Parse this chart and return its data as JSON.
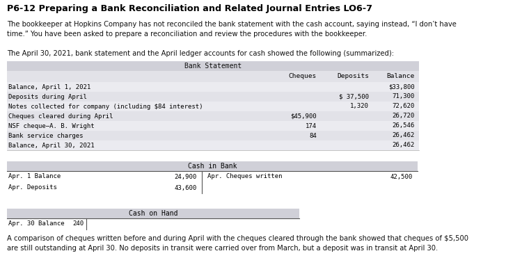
{
  "title": "P6-12 Preparing a Bank Reconciliation and Related Journal Entries LO6-7",
  "para1": "The bookkeeper at Hopkins Company has not reconciled the bank statement with the cash account, saying instead, “I don’t have\ntime.” You have been asked to prepare a reconciliation and review the procedures with the bookkeeper.",
  "para2": "The April 30, 2021, bank statement and the April ledger accounts for cash showed the following (summarized):",
  "bank_statement_header": "Bank Statement",
  "bank_col_headers": [
    "Cheques",
    "Deposits",
    "Balance"
  ],
  "bank_rows": [
    {
      "label": "Balance, April 1, 2021",
      "cheques": "",
      "deposits": "",
      "balance": "$33,800"
    },
    {
      "label": "Deposits during April",
      "cheques": "",
      "deposits": "$ 37,500",
      "balance": "71,300"
    },
    {
      "label": "Notes collected for company (including $84 interest)",
      "cheques": "",
      "deposits": "1,320",
      "balance": "72,620"
    },
    {
      "label": "Cheques cleared during April",
      "cheques": "$45,900",
      "deposits": "",
      "balance": "26,720"
    },
    {
      "label": "NSF cheque–A. B. Wright",
      "cheques": "174",
      "deposits": "",
      "balance": "26,546"
    },
    {
      "label": "Bank service charges",
      "cheques": "84",
      "deposits": "",
      "balance": "26,462"
    },
    {
      "label": "Balance, April 30, 2021",
      "cheques": "",
      "deposits": "",
      "balance": "26,462"
    }
  ],
  "cash_in_bank_header": "Cash in Bank",
  "cash_in_bank_left": [
    {
      "label": "Apr. 1 Balance",
      "value": "24,900"
    },
    {
      "label": "Apr. Deposits",
      "value": "43,600"
    }
  ],
  "cash_in_bank_right": [
    {
      "label": "Apr. Cheques written",
      "value": "42,500"
    }
  ],
  "cash_on_hand_header": "Cash on Hand",
  "cash_on_hand_rows": [
    {
      "label": "Apr. 30 Balance",
      "value": "240"
    }
  ],
  "para3": "A comparison of cheques written before and during April with the cheques cleared through the bank showed that cheques of $5,500\nare still outstanding at April 30. No deposits in transit were carried over from March, but a deposit was in transit at April 30.",
  "bg_color": "#ffffff",
  "table_header_bg": "#d0d0d8",
  "table_row_alt1": "#e2e2e8",
  "table_row_alt2": "#ebebf0",
  "font_mono": "monospace",
  "font_sans": "sans-serif",
  "figw": 7.27,
  "figh": 3.94,
  "dpi": 100
}
